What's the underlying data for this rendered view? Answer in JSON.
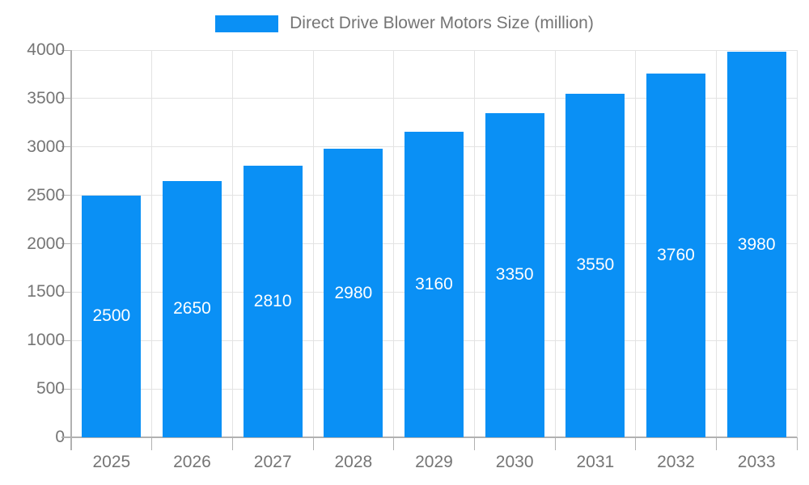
{
  "chart_data": {
    "type": "bar",
    "title": "Direct Drive Blower Motors Size (million)",
    "legend": "Direct Drive Blower Motors Size (million)",
    "legend_position": "top",
    "categories": [
      "2025",
      "2026",
      "2027",
      "2028",
      "2029",
      "2030",
      "2031",
      "2032",
      "2033"
    ],
    "values": [
      2500,
      2650,
      2810,
      2980,
      3160,
      3350,
      3550,
      3760,
      3980
    ],
    "xlabel": "",
    "ylabel": "",
    "ylim": [
      0,
      4000
    ],
    "ytick_step": 500,
    "yticks": [
      0,
      500,
      1000,
      1500,
      2000,
      2500,
      3000,
      3500,
      4000
    ],
    "grid": true,
    "bar_color": "#0a90f5",
    "bar_label_color": "#ffffff",
    "axis_text_color": "#757575",
    "grid_color": "#e3e3e3",
    "axis_line_color": "#b1b1b1",
    "background_color": "#ffffff"
  }
}
